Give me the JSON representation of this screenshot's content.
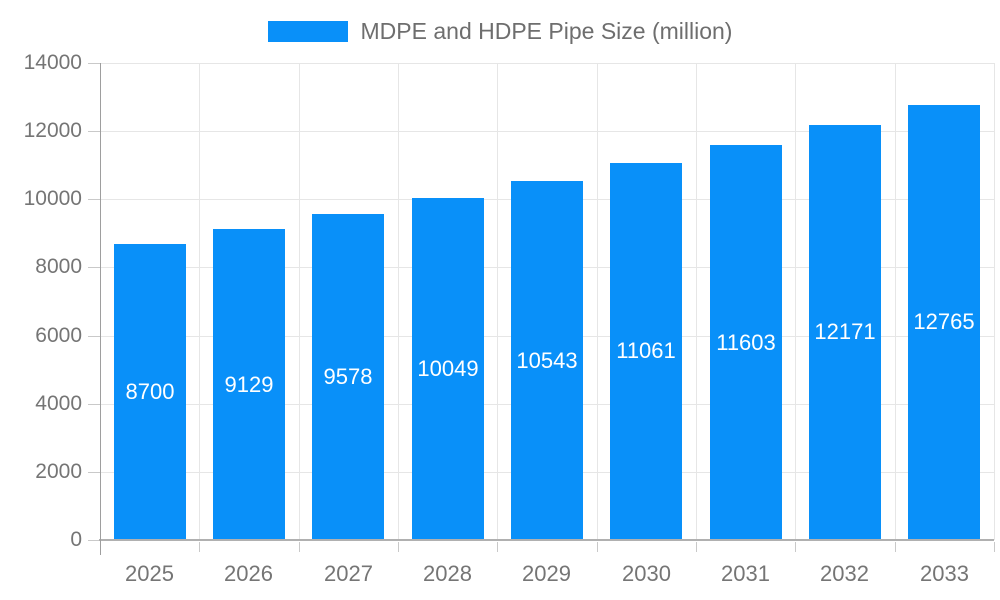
{
  "chart_data": {
    "type": "bar",
    "title": "MDPE and HDPE Pipe Size (million)",
    "categories": [
      "2025",
      "2026",
      "2027",
      "2028",
      "2029",
      "2030",
      "2031",
      "2032",
      "2033"
    ],
    "values": [
      8700,
      9129,
      9578,
      10049,
      10543,
      11061,
      11603,
      12171,
      12765
    ],
    "xlabel": "",
    "ylabel": "",
    "ylim": [
      0,
      14000
    ],
    "ytick_step": 2000,
    "yticks": [
      0,
      2000,
      4000,
      6000,
      8000,
      10000,
      12000,
      14000
    ],
    "grid": "both",
    "legend_position": "top-center",
    "value_label_position": "inside-middle"
  },
  "colors": {
    "bar": "#0990f9",
    "value_label": "#ffffff",
    "axis_text": "#757575",
    "legend_text": "#6e6e6e",
    "gridline": "#e6e6e6",
    "axis_line": "#9e9e9e",
    "baseline": "#b0b0b0",
    "tick": "#c9c9c9",
    "background": "#ffffff"
  }
}
